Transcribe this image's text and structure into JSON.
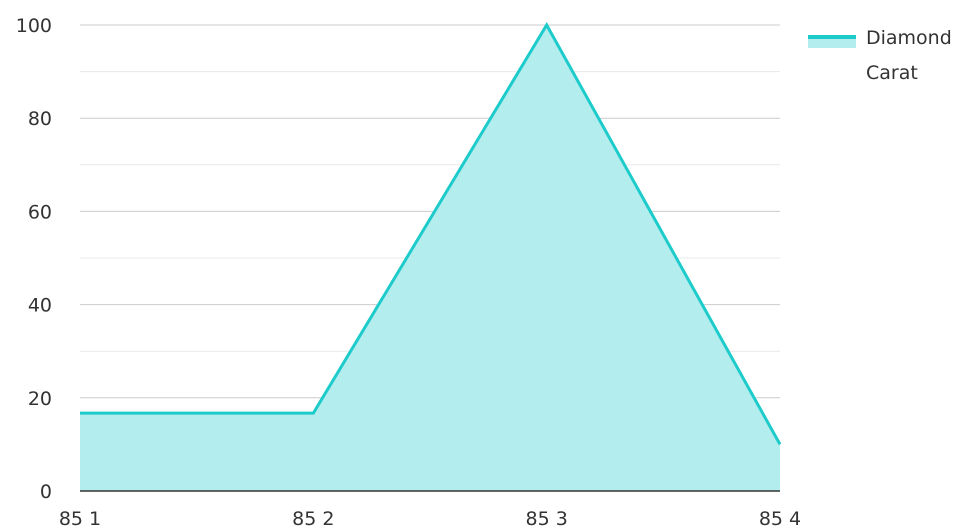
{
  "chart_data": {
    "type": "area",
    "title": "",
    "xlabel": "",
    "ylabel": "",
    "categories": [
      "85 1",
      "85 2",
      "85 3",
      "85 4"
    ],
    "series": [
      {
        "name": "Diamond Carat",
        "values": [
          16.7,
          16.7,
          100,
          10
        ]
      }
    ],
    "ylim": [
      0,
      100
    ],
    "yticks": [
      0,
      20,
      40,
      60,
      80,
      100
    ],
    "grid": true,
    "legend": {
      "position": "top-right",
      "lines": [
        "Diamond",
        "Carat"
      ]
    },
    "colors": {
      "line": "#1ecbcb",
      "fill": "#b3eded",
      "grid": "#d9d9d9",
      "axis": "#333333"
    }
  }
}
